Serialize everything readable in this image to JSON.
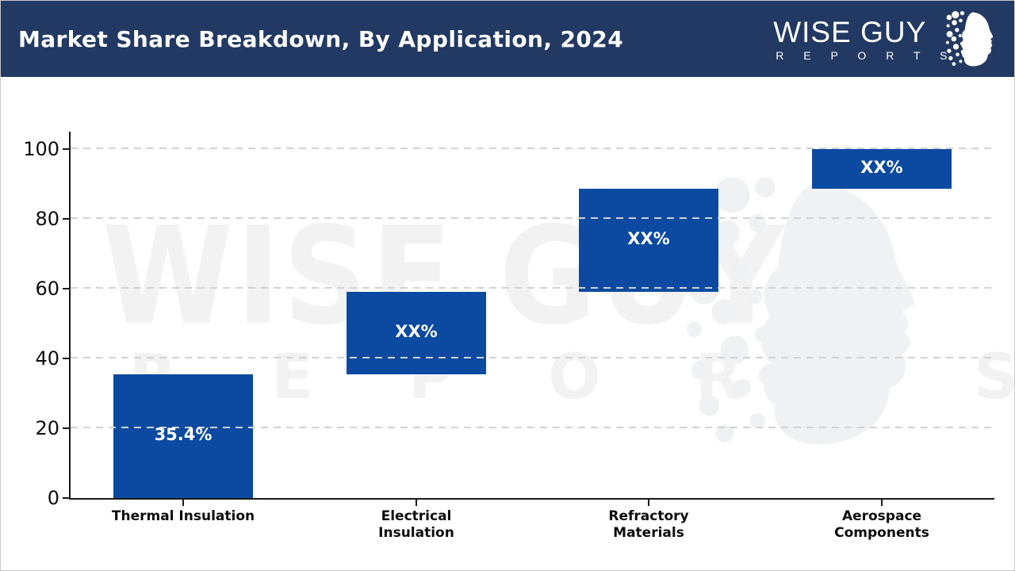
{
  "header": {
    "title": "Market Share Breakdown, By Application, 2024",
    "background": "#223963",
    "title_color": "#ffffff",
    "logo": {
      "name": "WISE GUY",
      "tagline": "R E P O R T S"
    }
  },
  "watermark": {
    "line1": "WISE GUY",
    "line2": "R E P O R T S"
  },
  "chart_data": {
    "type": "bar",
    "variant": "waterfall",
    "title": "Market Share Breakdown, By Application, 2024",
    "categories": [
      "Thermal Insulation",
      "Electrical Insulation",
      "Refractory Materials",
      "Aerospace Components"
    ],
    "category_labels": [
      "Thermal Insulation",
      "Electrical\nInsulation",
      "Refractory\nMaterials",
      "Aerospace\nComponents"
    ],
    "segments": [
      {
        "category": "Thermal Insulation",
        "start": 0,
        "end": 35.4,
        "label": "35.4%"
      },
      {
        "category": "Electrical Insulation",
        "start": 35.4,
        "end": 59,
        "label": "XX%"
      },
      {
        "category": "Refractory Materials",
        "start": 59,
        "end": 88.6,
        "label": "XX%"
      },
      {
        "category": "Aerospace Components",
        "start": 88.6,
        "end": 100,
        "label": "XX%"
      }
    ],
    "bar_color": "#0b4aa0",
    "label_color": "#ffffff",
    "ylim": [
      0,
      105
    ],
    "yticks": [
      0,
      20,
      40,
      60,
      80,
      100
    ],
    "grid": {
      "show": true,
      "style": "dashed",
      "color": "#d2d2d2",
      "above_bars": true
    },
    "axis_color": "#1a1a1a",
    "legend": "none"
  }
}
